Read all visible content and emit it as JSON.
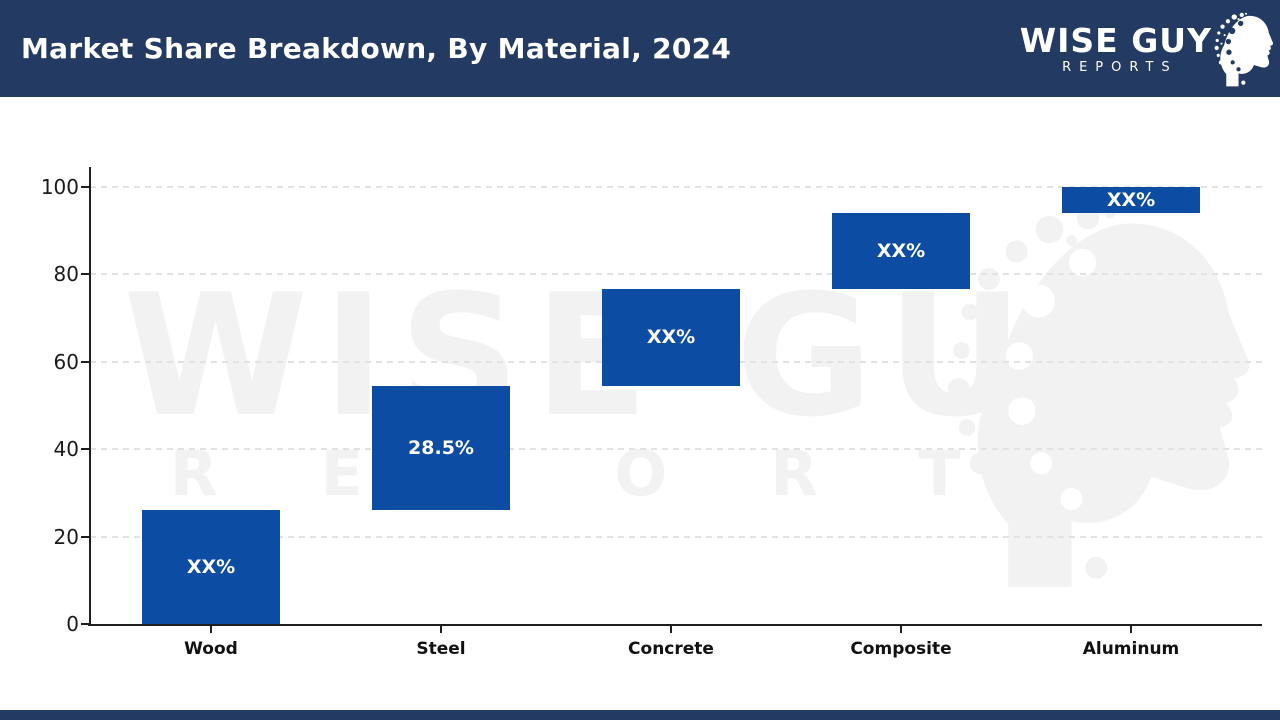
{
  "header": {
    "title": "Market Share Breakdown, By Material, 2024",
    "brand": {
      "name": "WISE GUY",
      "subtitle": "REPORTS"
    }
  },
  "watermark": {
    "line1": "WISE GUY",
    "line2": "REPORTS"
  },
  "colors": {
    "header_bg": "#233A63",
    "footer_bg": "#233A63",
    "bar": "#0C4CA3",
    "grid": "#E2E2E2",
    "axis": "#1F1F1F",
    "tick_text": "#1A1A1A",
    "category_text": "#111111",
    "bar_label": "#FFFFFF",
    "watermark": "#F2F2F2"
  },
  "chart_data": {
    "type": "bar",
    "subtype": "floating-segment-waterfall",
    "title": "Market Share Breakdown, By Material, 2024",
    "categories": [
      "Wood",
      "Steel",
      "Concrete",
      "Composite",
      "Aluminum"
    ],
    "series": [
      {
        "name": "Market share (%)",
        "segments": [
          {
            "category": "Wood",
            "start": 0,
            "end": 26,
            "label": "XX%"
          },
          {
            "category": "Steel",
            "start": 26,
            "end": 54.5,
            "label": "28.5%"
          },
          {
            "category": "Concrete",
            "start": 54.5,
            "end": 76.5,
            "label": "XX%"
          },
          {
            "category": "Composite",
            "start": 76.5,
            "end": 94,
            "label": "XX%"
          },
          {
            "category": "Aluminum",
            "start": 94,
            "end": 100,
            "label": "XX%"
          }
        ]
      }
    ],
    "yticks": [
      0,
      20,
      40,
      60,
      80,
      100
    ],
    "ylim": [
      0,
      104.5
    ],
    "xlabel": "",
    "ylabel": "",
    "grid": "horizontal-dashed",
    "legend": "none"
  }
}
